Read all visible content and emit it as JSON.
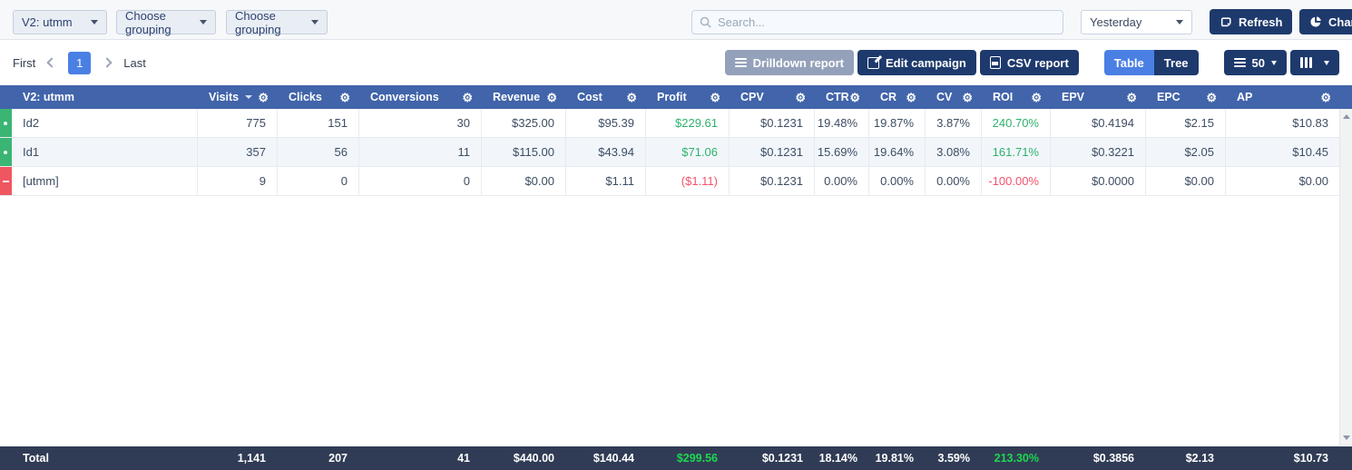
{
  "toolbar": {
    "variable_dropdown": "V2: utmm",
    "grouping2": "Choose grouping",
    "grouping3": "Choose grouping",
    "search_placeholder": "Search...",
    "date_range": "Yesterday",
    "refresh_label": "Refresh",
    "chart_label": "Chart"
  },
  "pagination": {
    "first": "First",
    "current_page": "1",
    "last": "Last"
  },
  "actions": {
    "drilldown": "Drilldown report",
    "edit_campaign": "Edit campaign",
    "csv_report": "CSV report",
    "table_view": "Table",
    "tree_view": "Tree",
    "rows_per_page": "50"
  },
  "icons": {
    "search": "magnifier",
    "refresh": "square-reload-arrow",
    "chart": "pie-chart",
    "drilldown": "list-lines",
    "edit": "pencil-square",
    "csv": "file-document",
    "rows_per_page": "hamburger-lines",
    "columns": "vertical-bars",
    "column_settings": "gear",
    "sort": "caret-down"
  },
  "table": {
    "columns": [
      {
        "key": "name",
        "label": "V2: utmm",
        "gear": false,
        "sorted": false
      },
      {
        "key": "visits",
        "label": "Visits",
        "gear": true,
        "sorted": true
      },
      {
        "key": "clicks",
        "label": "Clicks",
        "gear": true,
        "sorted": false
      },
      {
        "key": "conversions",
        "label": "Conversions",
        "gear": true,
        "sorted": false
      },
      {
        "key": "revenue",
        "label": "Revenue",
        "gear": true,
        "sorted": false
      },
      {
        "key": "cost",
        "label": "Cost",
        "gear": true,
        "sorted": false
      },
      {
        "key": "profit",
        "label": "Profit",
        "gear": true,
        "sorted": false
      },
      {
        "key": "cpv",
        "label": "CPV",
        "gear": true,
        "sorted": false
      },
      {
        "key": "ctr",
        "label": "CTR",
        "gear": true,
        "sorted": false
      },
      {
        "key": "cr",
        "label": "CR",
        "gear": true,
        "sorted": false
      },
      {
        "key": "cv",
        "label": "CV",
        "gear": true,
        "sorted": false
      },
      {
        "key": "roi",
        "label": "ROI",
        "gear": true,
        "sorted": false
      },
      {
        "key": "epv",
        "label": "EPV",
        "gear": true,
        "sorted": false
      },
      {
        "key": "epc",
        "label": "EPC",
        "gear": true,
        "sorted": false
      },
      {
        "key": "ap",
        "label": "AP",
        "gear": true,
        "sorted": false
      }
    ],
    "rows": [
      {
        "status": "active",
        "name": "Id2",
        "visits": "775",
        "clicks": "151",
        "conversions": "30",
        "revenue": "$325.00",
        "cost": "$95.39",
        "profit": "$229.61",
        "cpv": "$0.1231",
        "ctr": "19.48%",
        "cr": "19.87%",
        "cv": "3.87%",
        "roi": "240.70%",
        "epv": "$0.4194",
        "epc": "$2.15",
        "ap": "$10.83"
      },
      {
        "status": "active",
        "name": "Id1",
        "visits": "357",
        "clicks": "56",
        "conversions": "11",
        "revenue": "$115.00",
        "cost": "$43.94",
        "profit": "$71.06",
        "cpv": "$0.1231",
        "ctr": "15.69%",
        "cr": "19.64%",
        "cv": "3.08%",
        "roi": "161.71%",
        "epv": "$0.3221",
        "epc": "$2.05",
        "ap": "$10.45"
      },
      {
        "status": "inactive",
        "name": "[utmm]",
        "visits": "9",
        "clicks": "0",
        "conversions": "0",
        "revenue": "$0.00",
        "cost": "$1.11",
        "profit": "($1.11)",
        "cpv": "$0.1231",
        "ctr": "0.00%",
        "cr": "0.00%",
        "cv": "0.00%",
        "roi": "-100.00%",
        "epv": "$0.0000",
        "epc": "$0.00",
        "ap": "$0.00"
      }
    ],
    "total": {
      "name": "Total",
      "visits": "1,141",
      "clicks": "207",
      "conversions": "41",
      "revenue": "$440.00",
      "cost": "$140.44",
      "profit": "$299.56",
      "cpv": "$0.1231",
      "ctr": "18.14%",
      "cr": "19.81%",
      "cv": "3.59%",
      "roi": "213.30%",
      "epv": "$0.3856",
      "epc": "$2.13",
      "ap": "$10.73"
    }
  },
  "colors": {
    "header_blue": "#4164aa",
    "accent_blue": "#4a80e4",
    "navy_button": "#1e3a6d",
    "disabled_button": "#94a1ba",
    "total_row_bg": "#303c55",
    "positive": "#2eb26b",
    "positive_total": "#1ed750",
    "negative": "#f4526b",
    "status_active": "#3bb573",
    "status_inactive": "#ef5660",
    "zebra_row": "#f2f6fb"
  }
}
